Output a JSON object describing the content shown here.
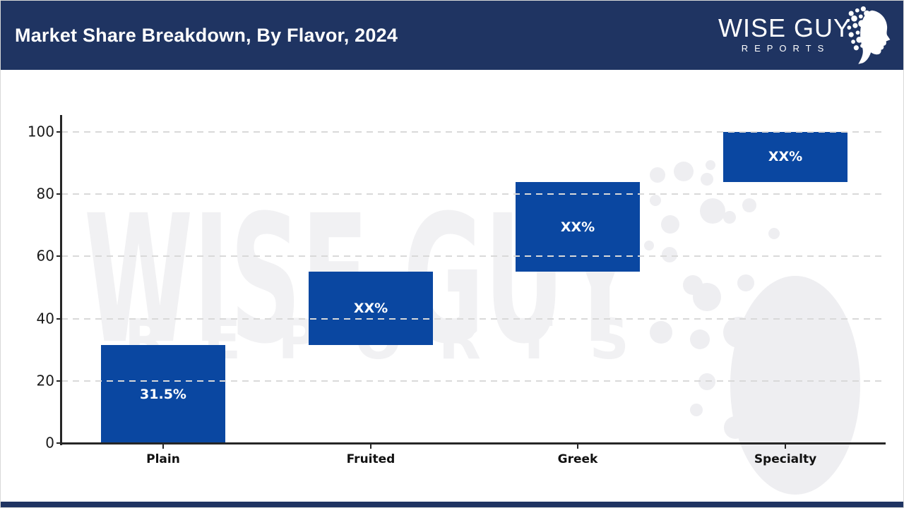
{
  "header": {
    "title": "Market Share Breakdown, By Flavor, 2024",
    "logo": {
      "line1": "WISE GUY",
      "line2": "REPORTS"
    }
  },
  "watermark": {
    "line1": "WISE GUY",
    "line2": "REPORTS"
  },
  "chart_data": {
    "type": "bar",
    "subtype": "waterfall",
    "title": "Market Share Breakdown, By Flavor, 2024",
    "categories": [
      "Plain",
      "Fruited",
      "Greek",
      "Specialty"
    ],
    "series": [
      {
        "name": "Market Share (%)",
        "segments": [
          {
            "category": "Plain",
            "start": 0,
            "end": 31.5,
            "label": "31.5%"
          },
          {
            "category": "Fruited",
            "start": 31.5,
            "end": 55,
            "label": "XX%"
          },
          {
            "category": "Greek",
            "start": 55,
            "end": 84,
            "label": "XX%"
          },
          {
            "category": "Specialty",
            "start": 84,
            "end": 100,
            "label": "XX%"
          }
        ]
      }
    ],
    "xlabel": "",
    "ylabel": "",
    "ylim": [
      0,
      100
    ],
    "yticks": [
      0,
      20,
      40,
      60,
      80,
      100
    ],
    "grid": "horizontal-dashed",
    "legend": "none",
    "bar_color": "#0a47a1",
    "bar_label_color": "#ffffff"
  },
  "colors": {
    "header_bg": "#1f3462",
    "footer_bg": "#1f3462",
    "bar": "#0a47a1",
    "grid": "#d9d9d9",
    "axis": "#262626",
    "watermark": "#f1f1f3"
  }
}
